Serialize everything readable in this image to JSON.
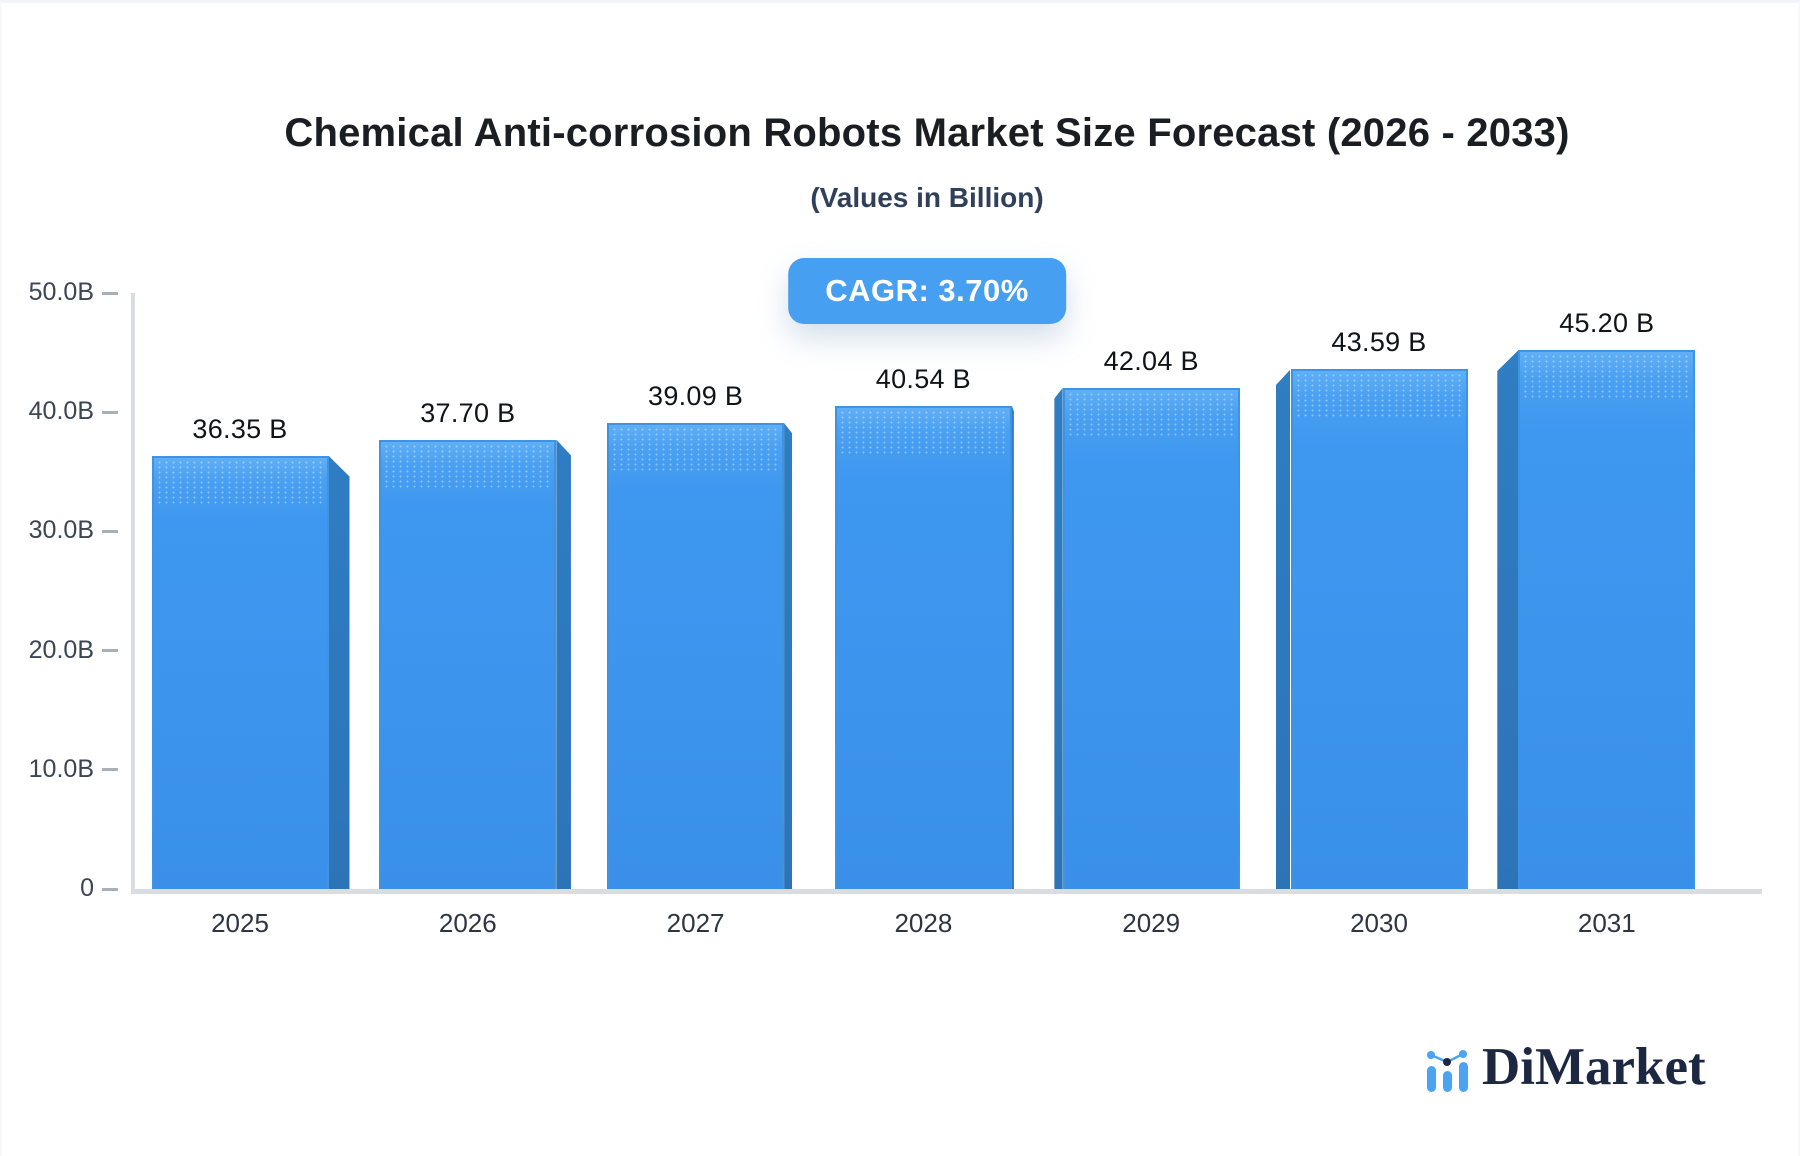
{
  "header": {
    "title": "Chemical Anti-corrosion Robots Market Size Forecast (2026 - 2033)",
    "subtitle": "(Values in Billion)",
    "cagr_badge": "CAGR: 3.70%"
  },
  "chart_data": {
    "type": "bar",
    "title": "Chemical Anti-corrosion Robots Market Size Forecast (2026 - 2033)",
    "subtitle": "(Values in Billion)",
    "cagr_percent": "3.70%",
    "categories": [
      "2025",
      "2026",
      "2027",
      "2028",
      "2029",
      "2030",
      "2031"
    ],
    "values": [
      36.35,
      37.7,
      39.09,
      40.54,
      42.04,
      43.59,
      45.2
    ],
    "value_labels": [
      "36.35 B",
      "37.70 B",
      "39.09 B",
      "40.54 B",
      "42.04 B",
      "43.59 B",
      "45.20 B"
    ],
    "unit": "Billion",
    "y_ticks": [
      {
        "label": "50.0B",
        "value": 50
      },
      {
        "label": "40.0B",
        "value": 40
      },
      {
        "label": "30.0B",
        "value": 30
      },
      {
        "label": "20.0B",
        "value": 20
      },
      {
        "label": "10.0B",
        "value": 10
      },
      {
        "label": "0",
        "value": 0
      }
    ],
    "ylim": [
      0,
      50
    ],
    "grid": "off",
    "legend": "none",
    "colors": {
      "bar_face": "#3f98ef",
      "bar_side": "#2d76b9",
      "axis": "#d9dde2",
      "tick": "#a9afb8",
      "badge_bg": "#479ff2",
      "badge_text": "#ffffff"
    }
  },
  "branding": {
    "logo_text": "DiMarket",
    "logo_navy": "#1c2742",
    "logo_blue": "#4aa3f3"
  }
}
